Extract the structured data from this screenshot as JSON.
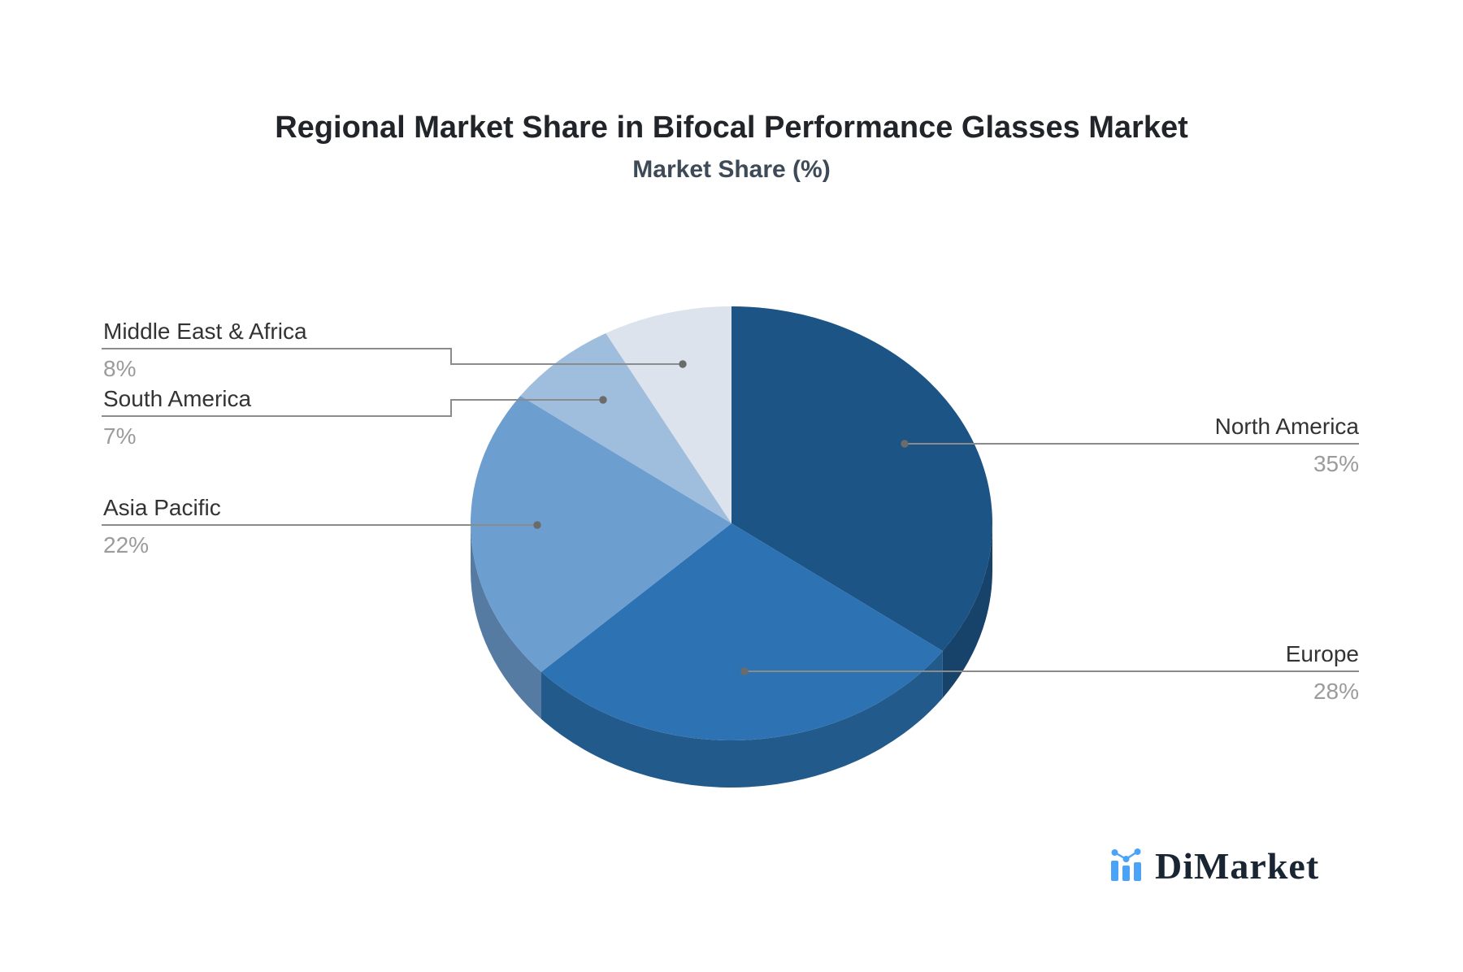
{
  "chart": {
    "title": "Regional Market Share in Bifocal Performance Glasses Market",
    "subtitle": "Market Share (%)"
  },
  "chart_data": {
    "type": "pie",
    "title": "Regional Market Share in Bifocal Performance Glasses Market",
    "subtitle": "Market Share (%)",
    "unit": "percent",
    "effect": "3d",
    "start_angle_deg": 90,
    "direction": "clockwise",
    "legend_position": "none",
    "categories": [
      "North America",
      "Europe",
      "Asia Pacific",
      "South America",
      "Middle East & Africa"
    ],
    "values": [
      35,
      28,
      22,
      7,
      8
    ],
    "slices": [
      {
        "label": "North America",
        "value": 35,
        "pct_label": "35%",
        "color": "#1d5486",
        "label_side": "right"
      },
      {
        "label": "Europe",
        "value": 28,
        "pct_label": "28%",
        "color": "#2d73b4",
        "label_side": "right"
      },
      {
        "label": "Asia Pacific",
        "value": 22,
        "pct_label": "22%",
        "color": "#6d9ed0",
        "label_side": "left"
      },
      {
        "label": "South America",
        "value": 7,
        "pct_label": "7%",
        "color": "#9fbddc",
        "label_side": "left"
      },
      {
        "label": "Middle East & Africa",
        "value": 8,
        "pct_label": "8%",
        "color": "#dce3ed",
        "label_side": "left"
      }
    ],
    "leader_line_color": "#8b8b8b",
    "dot_color": "#6b6b6b",
    "label_text_color": "#333333",
    "pct_text_color": "#9b9b9b"
  },
  "brand": {
    "name": "DiMarket",
    "accent_color": "#4ba3f7",
    "text_color": "#1a2533"
  }
}
